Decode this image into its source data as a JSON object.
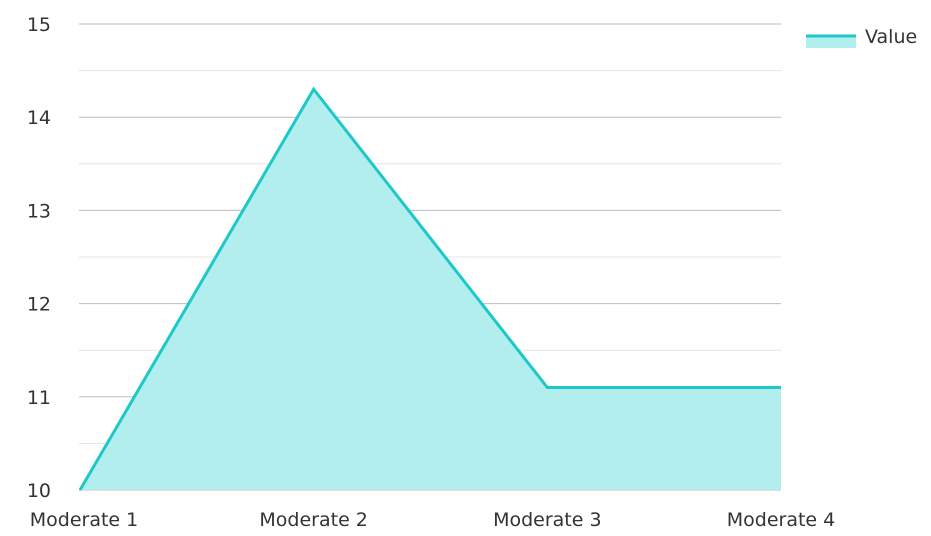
{
  "chart_data": {
    "type": "area",
    "categories": [
      "Moderate 1",
      "Moderate 2",
      "Moderate 3",
      "Moderate 4"
    ],
    "series": [
      {
        "name": "Value",
        "values": [
          10.0,
          14.3,
          11.1,
          11.1
        ]
      }
    ],
    "ylim": [
      10,
      15
    ],
    "yticks": [
      "10",
      "11",
      "12",
      "13",
      "14",
      "15"
    ],
    "grid": true,
    "legend_position": "top-right",
    "colors": {
      "line": "#1ec8c8",
      "fill": "#b2eeee"
    }
  }
}
